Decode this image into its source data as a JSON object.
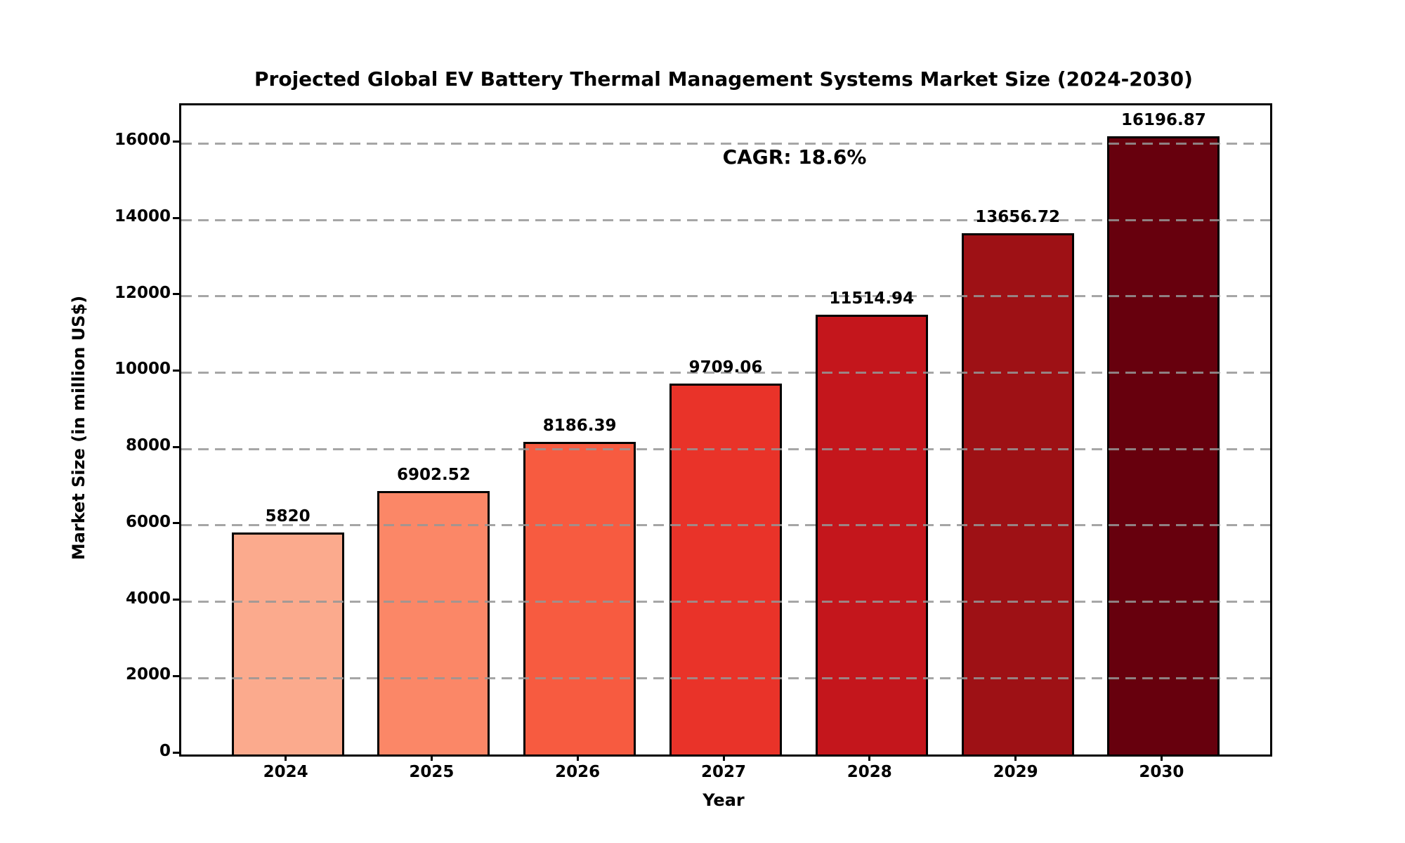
{
  "chart_data": {
    "type": "bar",
    "title": "Projected Global EV Battery Thermal Management Systems Market Size (2024-2030)",
    "annotation": "CAGR: 18.6%",
    "xlabel": "Year",
    "ylabel": "Market Size (in million US$)",
    "categories": [
      "2024",
      "2025",
      "2026",
      "2027",
      "2028",
      "2029",
      "2030"
    ],
    "values": [
      5820,
      6902.52,
      8186.39,
      9709.06,
      11514.94,
      13656.72,
      16196.87
    ],
    "bar_labels": [
      "5820",
      "6902.52",
      "8186.39",
      "9709.06",
      "11514.94",
      "13656.72",
      "16196.87"
    ],
    "bar_colors": [
      "#FBAA8D",
      "#FB8767",
      "#F75B40",
      "#E93329",
      "#C4161C",
      "#9E1115",
      "#67000D"
    ],
    "bar_edge_color": "#000000",
    "yticks": [
      0,
      2000,
      4000,
      6000,
      8000,
      10000,
      12000,
      14000,
      16000
    ],
    "ylim": [
      0,
      17000
    ],
    "grid": "horizontal dashed",
    "grid_color": "#969696",
    "legend": "none"
  }
}
